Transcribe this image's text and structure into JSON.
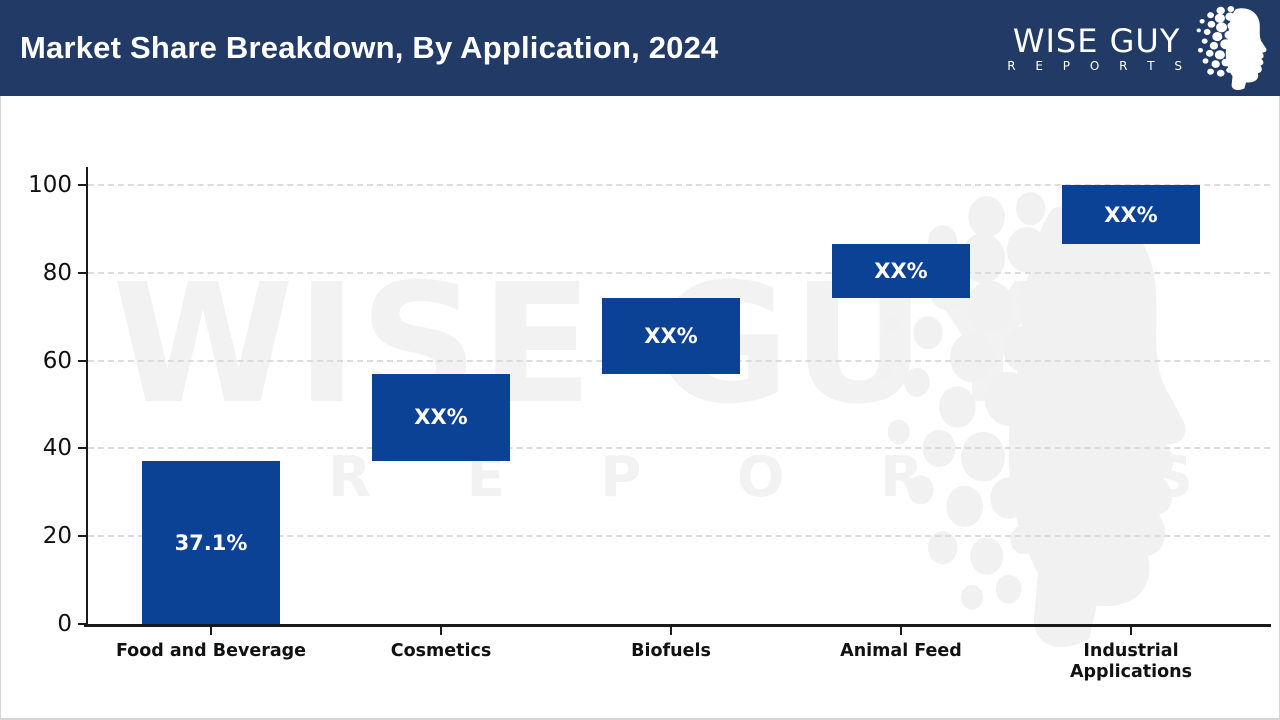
{
  "header": {
    "title": "Market Share Breakdown, By Application, 2024",
    "bg_color": "#223A66",
    "logo": {
      "line1": "WISE GUY",
      "line2": "R E P O R T S"
    }
  },
  "watermark": {
    "line1": "WISE GUY",
    "line2": "R E P O R T S"
  },
  "chart_data": {
    "type": "bar",
    "subtype": "waterfall-stacked-breakdown",
    "title": "Market Share Breakdown, By Application, 2024",
    "categories": [
      "Food and Beverage",
      "Cosmetics",
      "Biofuels",
      "Animal Feed",
      "Industrial Applications"
    ],
    "tick_labels": [
      "Food and Beverage",
      "Cosmetics",
      "Biofuels",
      "Animal Feed",
      "Industrial\nApplications"
    ],
    "bars": [
      {
        "category": "Food and Beverage",
        "start": 0,
        "end": 37.1,
        "label": "37.1%"
      },
      {
        "category": "Cosmetics",
        "start": 37.1,
        "end": 57.0,
        "label": "XX%"
      },
      {
        "category": "Biofuels",
        "start": 57.0,
        "end": 74.3,
        "label": "XX%"
      },
      {
        "category": "Animal Feed",
        "start": 74.3,
        "end": 86.5,
        "label": "XX%"
      },
      {
        "category": "Industrial Applications",
        "start": 86.5,
        "end": 100,
        "label": "XX%"
      }
    ],
    "y_ticks": [
      0,
      20,
      40,
      60,
      80,
      100
    ],
    "ylim": [
      0,
      104
    ],
    "xlabel": "",
    "ylabel": "",
    "bar_color": "#0C4295",
    "value_label_color": "#ffffff",
    "grid": "horizontal dashed light-gray",
    "legend": "none"
  }
}
